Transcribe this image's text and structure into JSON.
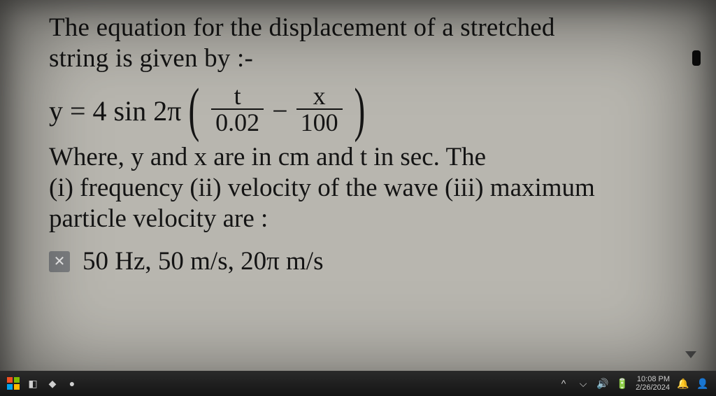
{
  "background_color": "#b8b6af",
  "text_color": "#141414",
  "frac_bar_color": "#141414",
  "intro_line1": "The equation for the displacement of a stretched",
  "intro_line2": "string is given by :-",
  "eq_lhs": "y = 4 sin 2π",
  "eq_frac1_num": "t",
  "eq_frac1_den": "0.02",
  "eq_minus": "−",
  "eq_frac2_num": "x",
  "eq_frac2_den": "100",
  "where_line1": "Where, y and x are in cm and t in sec. The",
  "where_line2": "(i) frequency (ii) velocity of the wave (iii) maximum",
  "where_line3": "particle velocity are :",
  "answer_icon_glyph": "✕",
  "answer_text": "50 Hz, 50 m/s, 20π m/s",
  "taskbar": {
    "chevron": "^",
    "wifi": "⌵",
    "sound": "🔊",
    "battery": "🔋",
    "time": "10:08 PM",
    "date": "2/26/2024",
    "bell": "🔔",
    "profile": "👤"
  }
}
